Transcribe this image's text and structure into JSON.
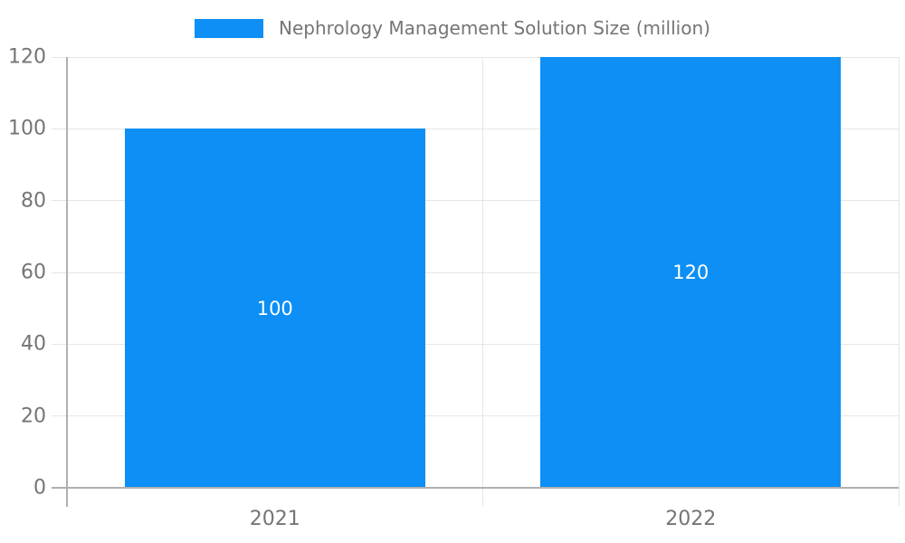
{
  "chart_data": {
    "type": "bar",
    "title": "Nephrology Management Solution Size (million)",
    "categories": [
      "2021",
      "2022"
    ],
    "series": [
      {
        "name": "Nephrology Management Solution Size (million)",
        "color": "#0d8ff5",
        "values": [
          100,
          120
        ]
      }
    ],
    "data_labels": [
      "100",
      "120"
    ],
    "xlabel": "",
    "ylabel": "",
    "ylim": [
      0,
      120
    ],
    "y_ticks": [
      0,
      20,
      40,
      60,
      80,
      100,
      120
    ],
    "grid": true,
    "legend_position": "top-center"
  },
  "colors": {
    "bar": "#0d8ff5",
    "text": "#757575",
    "gridline": "#e6e6e6",
    "axis": "#b0b0b0",
    "bar_label": "#ffffff",
    "background": "#ffffff"
  }
}
